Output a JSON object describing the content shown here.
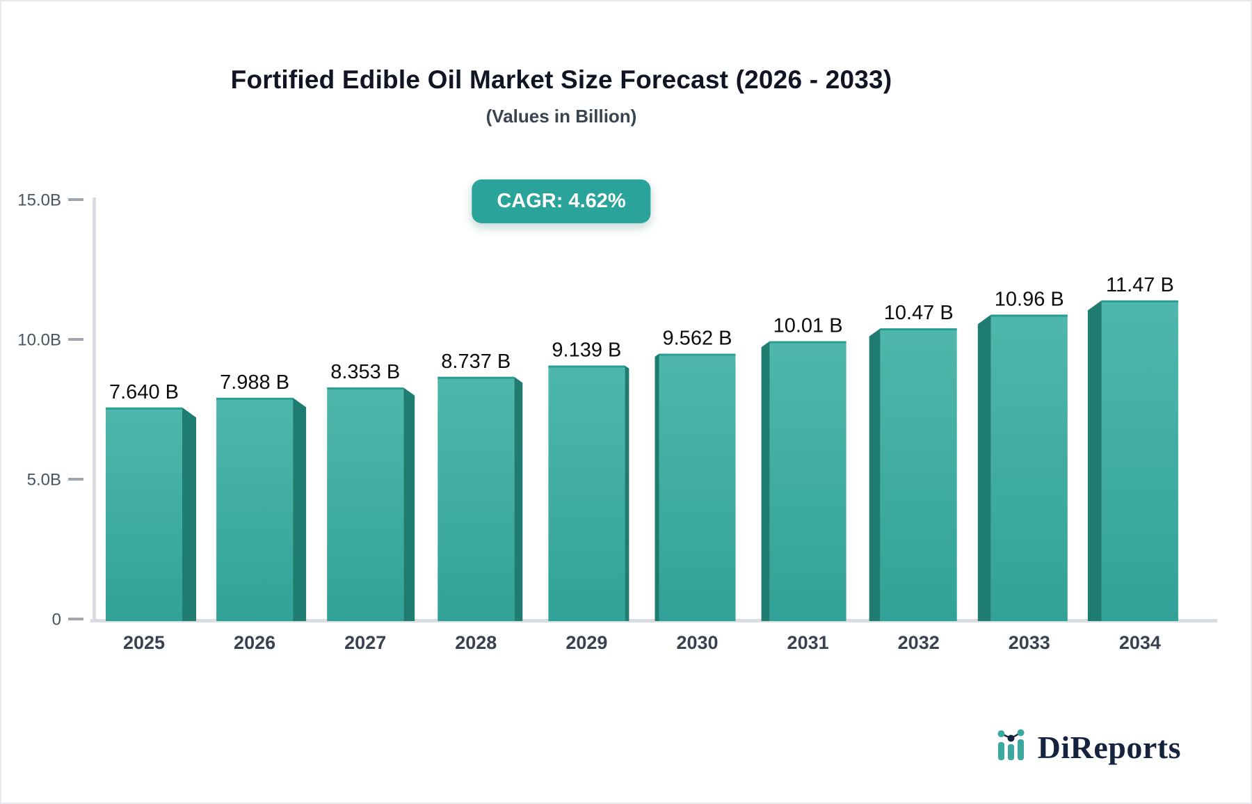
{
  "header": {
    "title": "Fortified Edible Oil Market Size Forecast (2026 - 2033)",
    "subtitle": "(Values in Billion)",
    "cagr_label": "CAGR: 4.62%"
  },
  "chart_data": {
    "type": "bar",
    "title": "Fortified Edible Oil Market Size Forecast (2026 - 2033)",
    "subtitle": "(Values in Billion)",
    "cagr_percent": 4.62,
    "categories": [
      "2025",
      "2026",
      "2027",
      "2028",
      "2029",
      "2030",
      "2031",
      "2032",
      "2033",
      "2034"
    ],
    "values": [
      7.64,
      7.988,
      8.353,
      8.737,
      9.139,
      9.562,
      10.01,
      10.47,
      10.96,
      11.47
    ],
    "value_labels": [
      "7.640 B",
      "7.988 B",
      "8.353 B",
      "8.737 B",
      "9.139 B",
      "9.562 B",
      "10.01 B",
      "10.47 B",
      "10.96 B",
      "11.47 B"
    ],
    "xlabel": "",
    "ylabel": "",
    "ylim": [
      0,
      15
    ],
    "grid": false,
    "legend": false,
    "y_ticks": [
      {
        "value": 0,
        "label": "0"
      },
      {
        "value": 5,
        "label": "5.0B"
      },
      {
        "value": 10,
        "label": "10.0B"
      },
      {
        "value": 15,
        "label": "15.0B"
      }
    ],
    "colors": {
      "bar_face_top": "#4fb7ac",
      "bar_face_bottom": "#31a297",
      "bar_top_edge": "#2b9e93",
      "bar_side": "#1f7c71",
      "axis_line": "#d9dce1",
      "tick_dash": "#a0a6ae",
      "y_label": "#49535f",
      "x_label": "#3a4150",
      "value_label": "#0c0c10",
      "badge_bg": "#2aa39a"
    }
  },
  "brand": {
    "name": "DiReports"
  }
}
